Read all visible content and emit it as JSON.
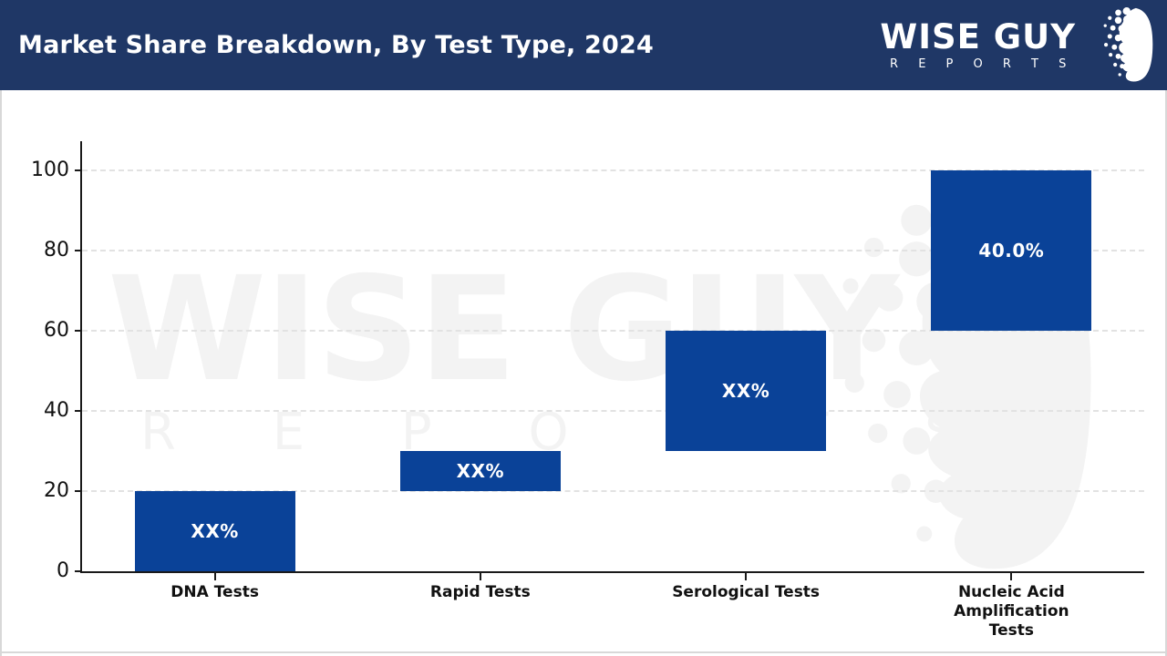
{
  "header": {
    "title": "Market Share Breakdown, By Test Type, 2024",
    "logo": {
      "line1": "WISE GUY",
      "line2": "R E P O R T S"
    }
  },
  "watermark": {
    "line1": "WISE GUY",
    "line2": "R E P O R T S"
  },
  "colors": {
    "header_bg": "#1f3766",
    "bar": "#0a4298",
    "grid": "#e2e2e2",
    "axis": "#1a1a1a",
    "watermark": "#f3f3f3",
    "title_text": "#ffffff",
    "bar_label_text": "#ffffff"
  },
  "chart_data": {
    "type": "bar",
    "subtype": "floating-waterfall",
    "title": "Market Share Breakdown, By Test Type, 2024",
    "categories": [
      "DNA Tests",
      "Rapid Tests",
      "Serological Tests",
      "Nucleic Acid Amplification Tests"
    ],
    "tick_labels": [
      "DNA Tests",
      "Rapid Tests",
      "Serological Tests",
      "Nucleic Acid\nAmplification\nTests"
    ],
    "series": [
      {
        "name": "Market Share (%)",
        "segments": [
          {
            "category": "DNA Tests",
            "start": 0,
            "end": 20,
            "label": "XX%"
          },
          {
            "category": "Rapid Tests",
            "start": 20,
            "end": 30,
            "label": "XX%"
          },
          {
            "category": "Serological Tests",
            "start": 30,
            "end": 60,
            "label": "XX%"
          },
          {
            "category": "Nucleic Acid Amplification Tests",
            "start": 60,
            "end": 100,
            "label": "40.0%"
          }
        ]
      }
    ],
    "xlabel": "",
    "ylabel": "",
    "yticks": [
      0,
      20,
      40,
      60,
      80,
      100
    ],
    "ylim": [
      0,
      107
    ],
    "grid": "horizontal-dashed",
    "legend": "none"
  }
}
